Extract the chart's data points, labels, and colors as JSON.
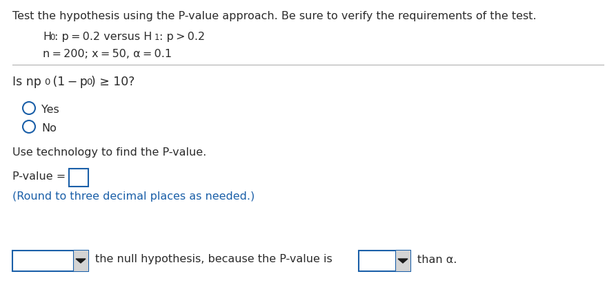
{
  "title_line": "Test the hypothesis using the P-value approach. Be sure to verify the requirements of the test.",
  "hyp_line1_a": "H",
  "hyp_line1_b": "0",
  "hyp_line1_c": ": p = 0.2 versus H",
  "hyp_line1_d": "1",
  "hyp_line1_e": ": p > 0.2",
  "hyp_line2": "n = 200; x = 50, α = 0.1",
  "question": "Is np",
  "question_sub": "0",
  "question_mid": " (1 − p",
  "question_sub2": "0",
  "question_end": ") ≥ 10?",
  "yes_label": "Yes",
  "no_label": "No",
  "tech_line": "Use technology to find the P-value.",
  "pvalue_label": "P-value =",
  "round_note": "(Round to three decimal places as needed.)",
  "bottom_mid": "the null hypothesis, because the P-value is",
  "bottom_end": "than α.",
  "bg_color": "#ffffff",
  "text_color": "#2b2b2b",
  "blue_color": "#1a5fa8",
  "box_border": "#1a5fa8",
  "separator_color": "#b0b0b0",
  "arrow_bg": "#d4d4d4",
  "arrow_color": "#1a1a1a",
  "fs": 11.5
}
